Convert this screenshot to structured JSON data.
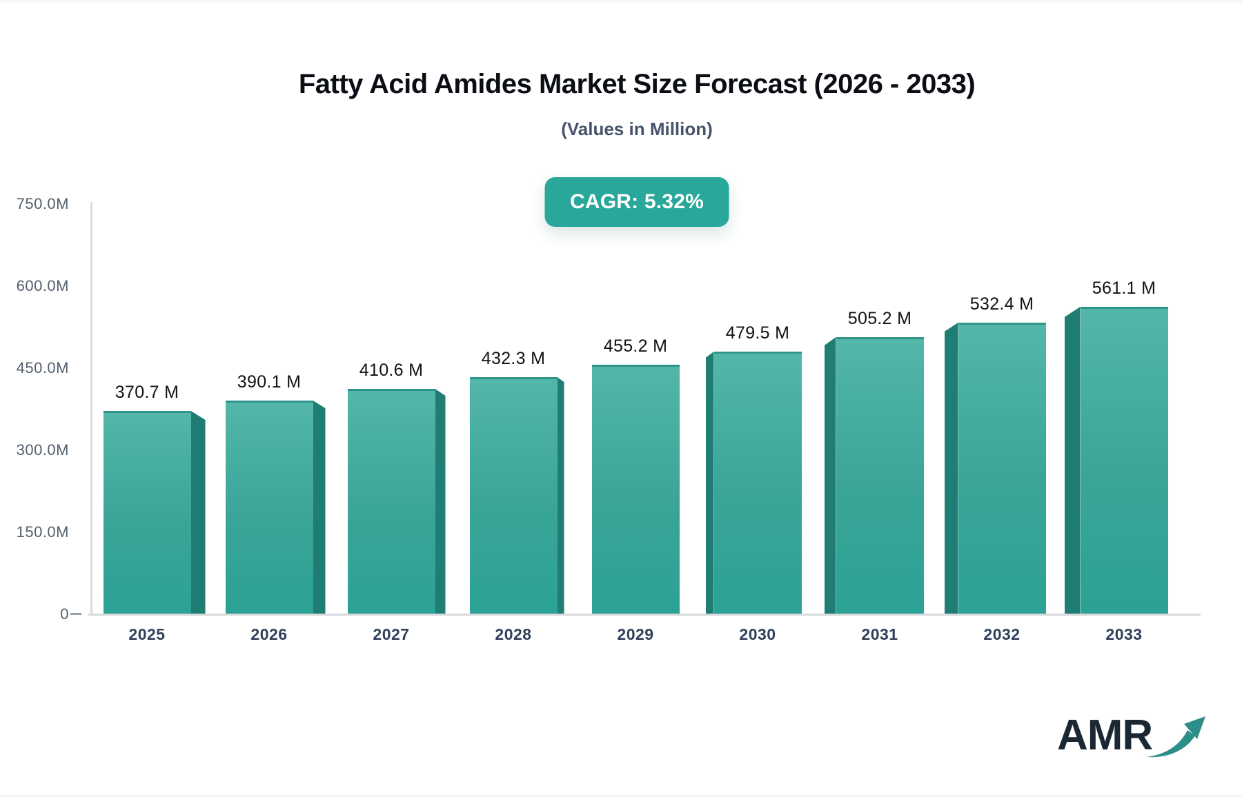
{
  "header": {
    "title": "Fatty Acid Amides Market Size Forecast (2026 - 2033)",
    "subtitle": "(Values in Million)",
    "cagr_label": "CAGR: 5.32%"
  },
  "logo": {
    "text": "AMR"
  },
  "chart_data": {
    "type": "bar",
    "title": "Fatty Acid Amides Market Size Forecast (2026 - 2033)",
    "subtitle": "(Values in Million)",
    "cagr_percent": 5.32,
    "categories": [
      "2025",
      "2026",
      "2027",
      "2028",
      "2029",
      "2030",
      "2031",
      "2032",
      "2033"
    ],
    "values": [
      370.7,
      390.1,
      410.6,
      432.3,
      455.2,
      479.5,
      505.2,
      532.4,
      561.1
    ],
    "value_labels": [
      "370.7 M",
      "390.1 M",
      "410.6 M",
      "432.3 M",
      "455.2 M",
      "479.5 M",
      "505.2 M",
      "532.4 M",
      "561.1 M"
    ],
    "unit": "Million",
    "xlabel": "",
    "ylabel": "",
    "ylim": [
      0,
      750
    ],
    "y_tick_values": [
      750,
      600,
      450,
      300,
      150,
      0
    ],
    "y_tick_labels": [
      "750.0M",
      "600.0M",
      "450.0M",
      "300.0M",
      "150.0M",
      "0"
    ],
    "grid": false,
    "legend": false,
    "style": {
      "bar_front_top_color": "#53b6a8",
      "bar_front_mid_color": "#3aa597",
      "bar_front_bottom_color": "#2ba295",
      "bar_side_color": "#1f7d73",
      "bar_top_edge_color": "#2f958a",
      "badge_color": "#2aa79b",
      "axis_color": "#d8dadd",
      "tick_text_color": "#525f6c",
      "year_text_color": "#31405a",
      "value_text_color": "#101216",
      "logo_text_color": "#1b2733",
      "logo_arrow_color": "#2d8d87"
    }
  }
}
